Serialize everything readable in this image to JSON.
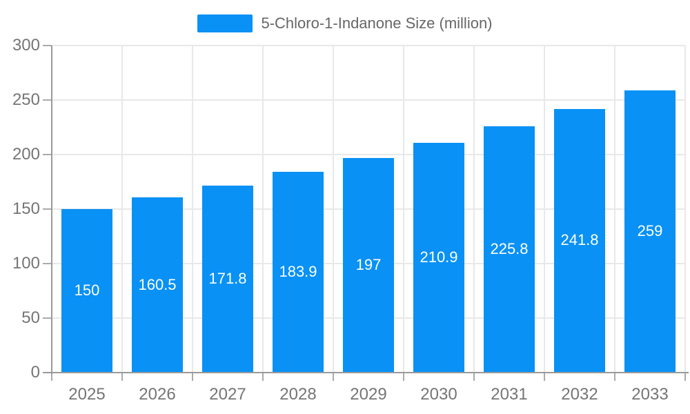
{
  "chart_data": {
    "type": "bar",
    "title": "5-Chloro-1-Indanone Size (million)",
    "categories": [
      "2025",
      "2026",
      "2027",
      "2028",
      "2029",
      "2030",
      "2031",
      "2032",
      "2033"
    ],
    "values": [
      150,
      160.5,
      171.8,
      183.9,
      197,
      210.9,
      225.8,
      241.8,
      259
    ],
    "value_labels": [
      "150",
      "160.5",
      "171.8",
      "183.9",
      "197",
      "210.9",
      "225.8",
      "241.8",
      "259"
    ],
    "xlabel": "",
    "ylabel": "",
    "ylim": [
      0,
      300
    ],
    "yticks": [
      0,
      50,
      100,
      150,
      200,
      250,
      300
    ],
    "grid": true,
    "legend_position": "top-center",
    "value_label_position": "inside-center",
    "colors": {
      "bar": "#0991f5",
      "grid": "#e8e8e8",
      "axis": "#999999",
      "tick": "#aaaaaa",
      "tick_text": "#757575",
      "legend_text": "#666666",
      "value_text": "#ffffff",
      "background": "#ffffff"
    }
  }
}
